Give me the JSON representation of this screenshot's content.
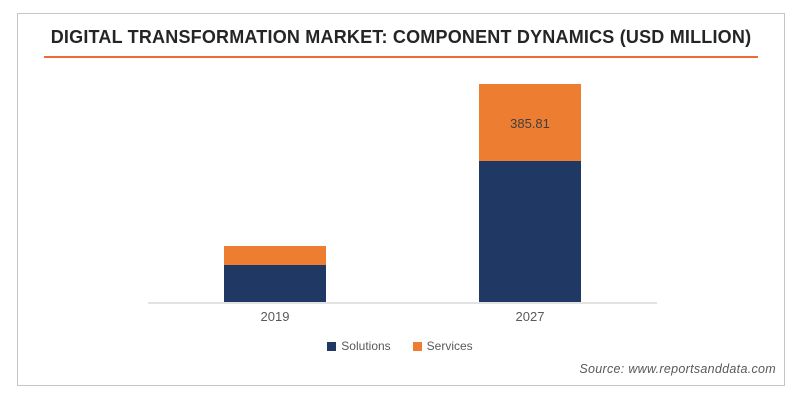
{
  "title": {
    "text": "DIGITAL TRANSFORMATION MARKET: COMPONENT DYNAMICS (USD MILLION)"
  },
  "source": {
    "text": "Source: www.reportsanddata.com"
  },
  "colors": {
    "accent_rule": "#ed6b3b",
    "title_text": "#252525",
    "muted_text": "#595959",
    "axis_line": "#e2e2e2"
  },
  "chart_data": {
    "type": "bar",
    "stacked": true,
    "title": "DIGITAL TRANSFORMATION MARKET: COMPONENT DYNAMICS (USD MILLION)",
    "categories": [
      "2019",
      "2027"
    ],
    "series": [
      {
        "name": "Solutions",
        "color": "#203864",
        "values": [
          185,
          706
        ]
      },
      {
        "name": "Services",
        "color": "#ed7d31",
        "values": [
          95,
          385.81
        ]
      }
    ],
    "data_labels": [
      {
        "series": "Services",
        "category": "2027",
        "text": "385.81"
      }
    ],
    "xlabel": "",
    "ylabel": "",
    "ylim": [
      0,
      1100
    ],
    "grid": false,
    "legend_position": "bottom",
    "note": "Only the 385.81 label is printed on the chart; other segment values are estimated from bar heights."
  }
}
